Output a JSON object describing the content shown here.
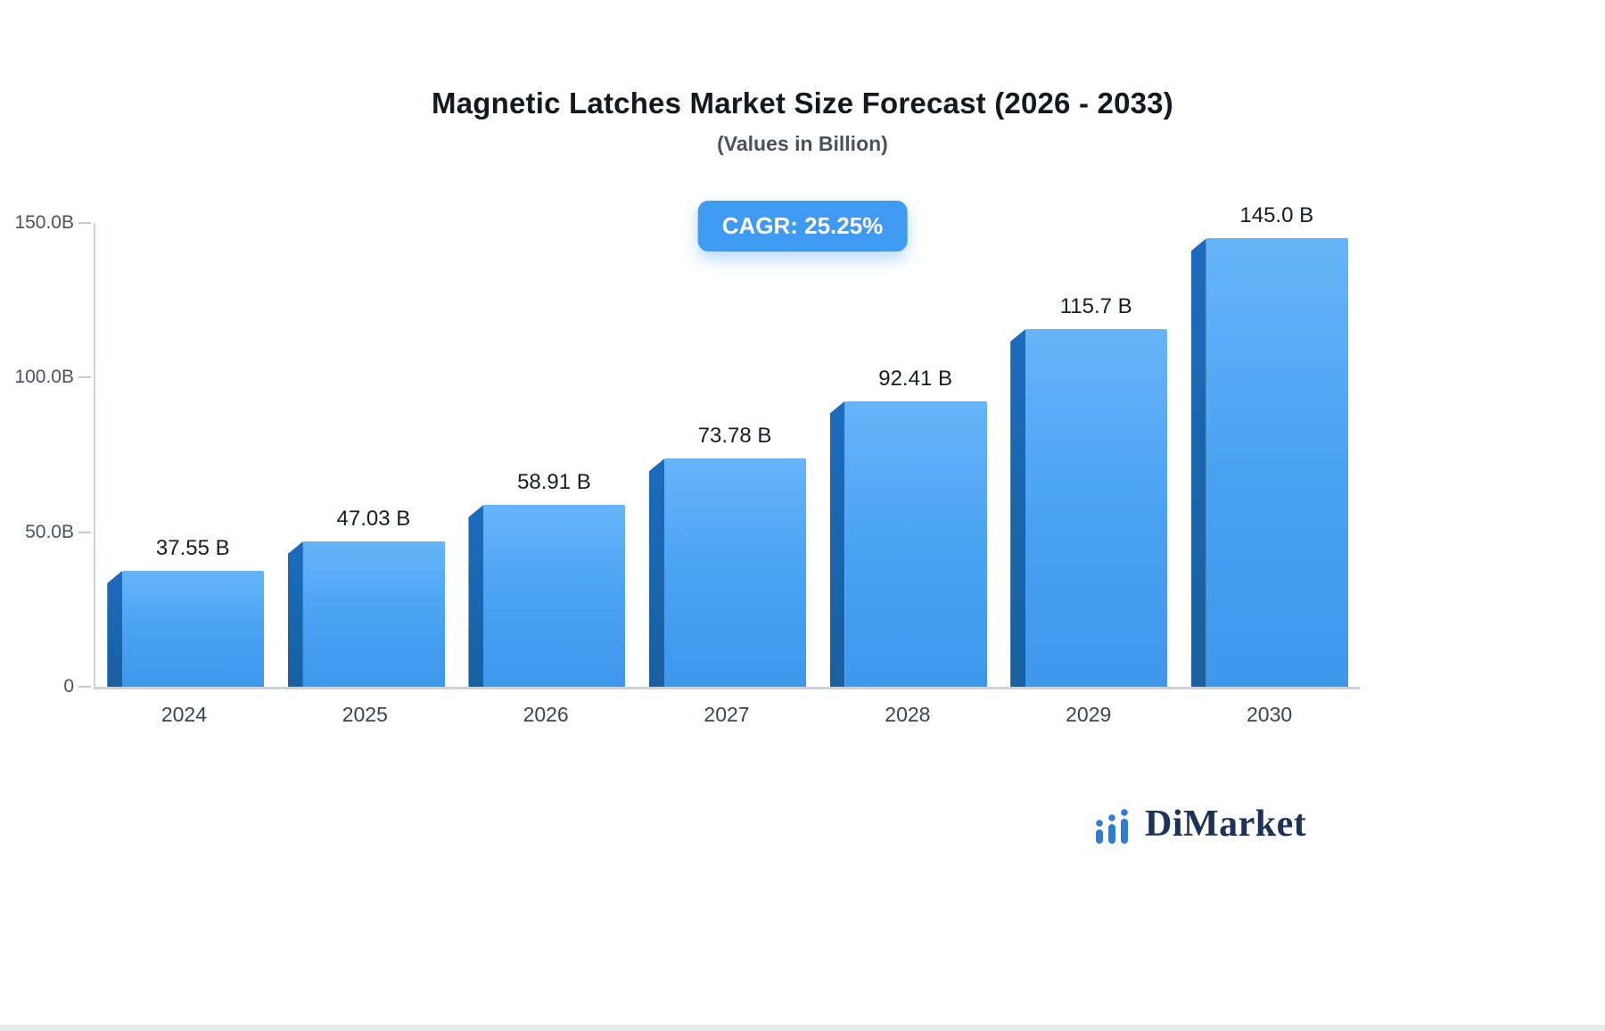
{
  "title": "Magnetic Latches Market Size Forecast (2026 - 2033)",
  "subtitle": "(Values in Billion)",
  "cagr_label": "CAGR: 25.25%",
  "brand": {
    "name": "DiMarket"
  },
  "colors": {
    "accent_blue": "#3E9BF1",
    "bar_top": "#66B4F8",
    "bar_bottom": "#3F97EC",
    "bar_side": "#1C6BBD",
    "brand_navy": "#1C3357",
    "axis_gray": "#CDD2D8",
    "text_dark": "#14181F",
    "text_gray": "#4A5260"
  },
  "chart_data": {
    "type": "bar",
    "categories": [
      "2024",
      "2025",
      "2026",
      "2027",
      "2028",
      "2029",
      "2030"
    ],
    "values": [
      37.55,
      47.03,
      58.91,
      73.78,
      92.41,
      115.7,
      145.0
    ],
    "value_labels": [
      "37.55 B",
      "47.03 B",
      "58.91 B",
      "73.78 B",
      "92.41 B",
      "115.7 B",
      "145.0 B"
    ],
    "title": "Magnetic Latches Market Size Forecast (2026 - 2033)",
    "subtitle": "(Values in Billion)",
    "annotation": "CAGR: 25.25%",
    "xlabel": "",
    "ylabel": "",
    "ylim": [
      0,
      150
    ],
    "yticks": [
      0,
      50,
      100,
      150
    ],
    "ytick_labels": [
      "0",
      "50.0B",
      "100.0B",
      "150.0B"
    ],
    "grid": false,
    "legend": false,
    "bar_color": "#47A0F2"
  }
}
